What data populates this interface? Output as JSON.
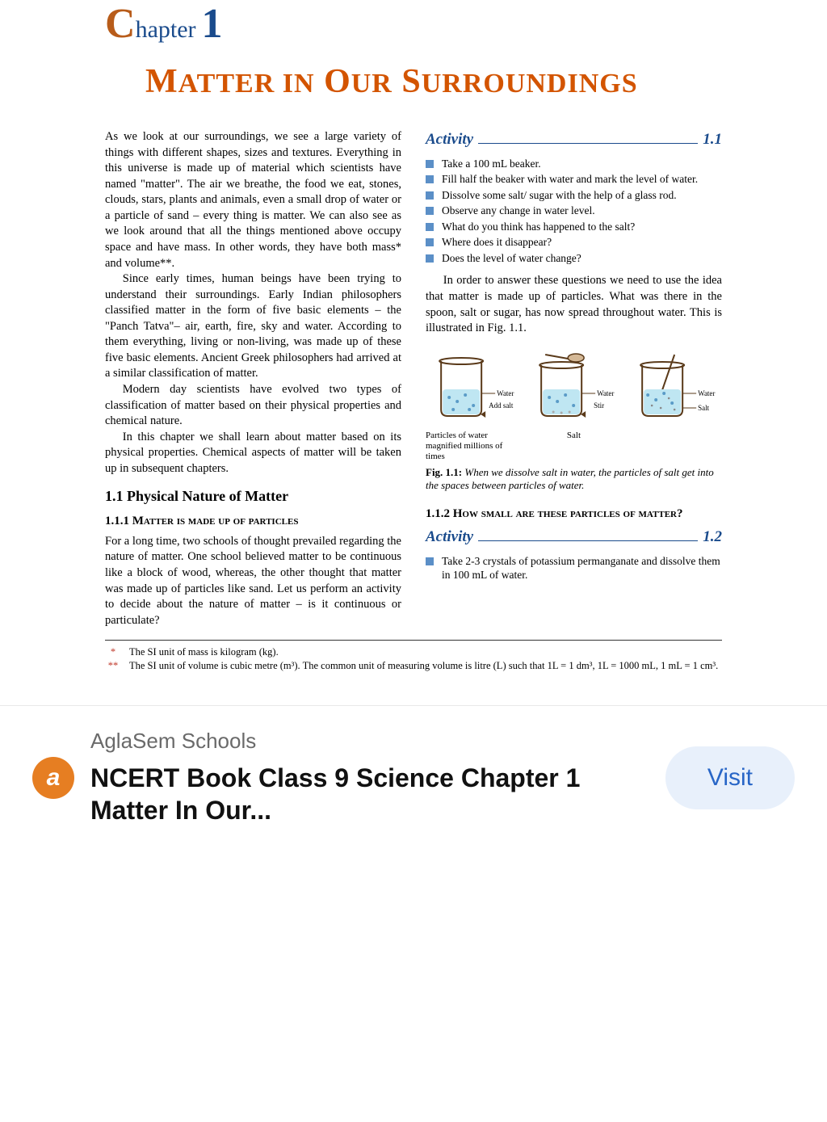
{
  "chapter": {
    "big_c": "C",
    "hapter": "hapter",
    "num": "1"
  },
  "title_parts": [
    "M",
    "ATTER",
    " IN",
    " O",
    "UR",
    " S",
    "URROUNDINGS"
  ],
  "left": {
    "p1": "As we look at our surroundings, we see a large variety of things with different shapes, sizes and textures. Everything in this universe is made up of material which scientists have named \"matter\". The air we breathe, the food we eat, stones, clouds, stars, plants and animals, even a small drop of water or a particle of sand – every thing is matter. We can also see as we look around that all the things mentioned above occupy space and have mass. In other words, they have both mass* and volume**.",
    "p2": "Since early times, human beings have been trying to understand their surroundings. Early Indian philosophers classified matter in the form of five basic elements – the \"Panch Tatva\"– air, earth, fire, sky and water. According to them everything, living or non-living, was made up of these five basic elements. Ancient Greek philosophers had arrived at a similar classification of matter.",
    "p3": "Modern day scientists have evolved two types of classification of matter based on their physical properties and chemical nature.",
    "p4": "In this chapter we shall learn about matter based on its physical properties. Chemical aspects of matter will be taken up in subsequent chapters.",
    "h1": "1.1  Physical Nature of Matter",
    "h2": "1.1.1 Matter is made up of particles",
    "p5": "For a long time, two schools of thought prevailed regarding the nature of matter. One school believed matter to be continuous like a block of wood, whereas, the other thought that matter was made up of particles like sand. Let us perform an activity to decide about the nature of matter – is it continuous or particulate?"
  },
  "right": {
    "act1_label": "Activity",
    "act1_num": "1.1",
    "act1_items": [
      "Take a 100 mL beaker.",
      "Fill half the beaker with water and mark the level of water.",
      "Dissolve some salt/ sugar with the help of a glass rod.",
      "Observe any change in water level.",
      "What do you think has happened to the salt?",
      "Where does it disappear?",
      "Does the level of water change?"
    ],
    "p1": "In order to answer these questions we need to use the idea that matter is made up of particles. What was there in the spoon, salt or sugar, has now spread throughout water. This is illustrated in Fig. 1.1.",
    "beakers": {
      "b1": {
        "label1": "Water",
        "label2": "Add salt",
        "sub": "Particles of water magnified millions of times"
      },
      "b2": {
        "label1": "Water",
        "label2": "Stir",
        "sub": "Salt"
      },
      "b3": {
        "label1": "Water",
        "label2": "Salt"
      },
      "stroke": "#5a3a1a",
      "water_fill": "#bfe6f2"
    },
    "fig_caption_bold": "Fig. 1.1:",
    "fig_caption": " When we dissolve salt in water, the particles of salt get into the spaces between particles of water.",
    "h2": "1.1.2 How small are these particles of matter?",
    "act2_label": "Activity",
    "act2_num": "1.2",
    "act2_items": [
      "Take 2-3 crystals of potassium permanganate and dissolve them in 100 mL of water."
    ]
  },
  "footnotes": {
    "f1": "The SI unit of mass is kilogram (kg).",
    "f2": "The SI unit of volume is cubic metre (m³). The common unit of measuring volume is litre (L) such that 1L = 1 dm³, 1L = 1000 mL, 1 mL = 1 cm³."
  },
  "card": {
    "icon_letter": "a",
    "brand": "AglaSem Schools",
    "title": "NCERT Book Class 9 Science Chapter 1 Matter In Our...",
    "button": "Visit"
  },
  "colors": {
    "accent_orange": "#d35400",
    "accent_blue": "#1a4b8c",
    "visit_bg": "#e8f0fb",
    "visit_fg": "#2866c7",
    "brand_circle": "#e67e22"
  }
}
